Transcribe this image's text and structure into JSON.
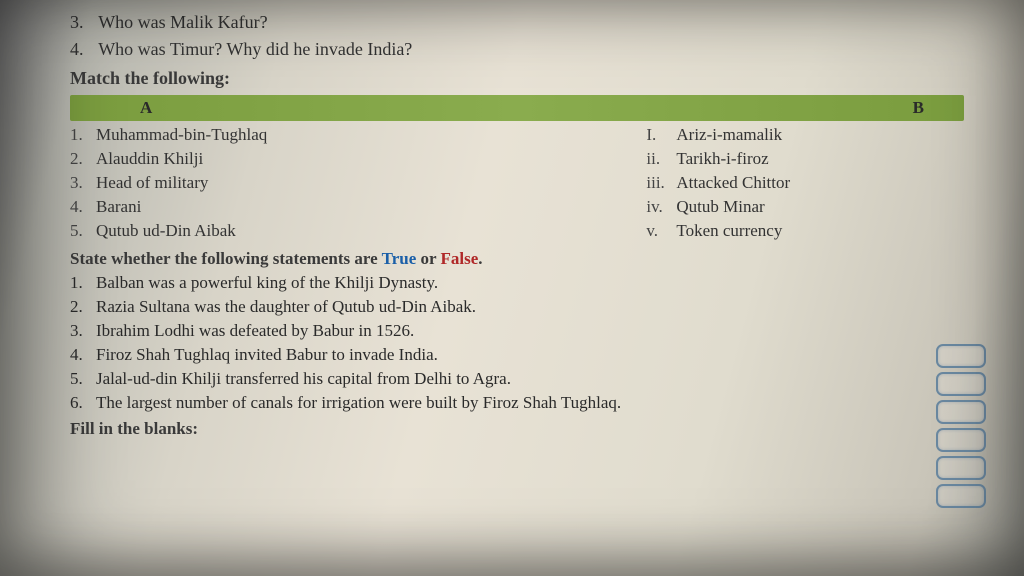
{
  "questions": [
    {
      "num": "3.",
      "text": "Who was Malik Kafur?"
    },
    {
      "num": "4.",
      "text": "Who was Timur? Why did he invade India?"
    }
  ],
  "match": {
    "title": "Match the following:",
    "headerA": "A",
    "headerB": "B",
    "rows": [
      {
        "ln": "1.",
        "left": "Muhammad-bin-Tughlaq",
        "rn": "I.",
        "right": "Ariz-i-mamalik"
      },
      {
        "ln": "2.",
        "left": "Alauddin Khilji",
        "rn": "ii.",
        "right": "Tarikh-i-firoz"
      },
      {
        "ln": "3.",
        "left": "Head of military",
        "rn": "iii.",
        "right": "Attacked Chittor"
      },
      {
        "ln": "4.",
        "left": "Barani",
        "rn": "iv.",
        "right": "Qutub Minar"
      },
      {
        "ln": "5.",
        "left": "Qutub ud-Din Aibak",
        "rn": "v.",
        "right": "Token currency"
      }
    ]
  },
  "tf": {
    "title_pre": "State whether the following statements are ",
    "true_word": "True",
    "or_word": " or ",
    "false_word": "False",
    "period": ".",
    "items": [
      {
        "num": "1.",
        "text": "Balban was a powerful king of the Khilji Dynasty."
      },
      {
        "num": "2.",
        "text": "Razia Sultana was the daughter of Qutub ud-Din Aibak."
      },
      {
        "num": "3.",
        "text": "Ibrahim Lodhi was defeated by Babur in 1526."
      },
      {
        "num": "4.",
        "text": "Firoz Shah Tughlaq invited Babur to invade India."
      },
      {
        "num": "5.",
        "text": "Jalal-ud-din Khilji transferred his capital from Delhi to Agra."
      },
      {
        "num": "6.",
        "text": "The largest number of canals for irrigation were built by Firoz Shah Tughlaq."
      }
    ]
  },
  "fill_title": "Fill in the blanks:",
  "colors": {
    "header_bg": "#7a9c3e",
    "true_color": "#1a5fa8",
    "false_color": "#b02828",
    "box_border": "#6a88a0"
  }
}
